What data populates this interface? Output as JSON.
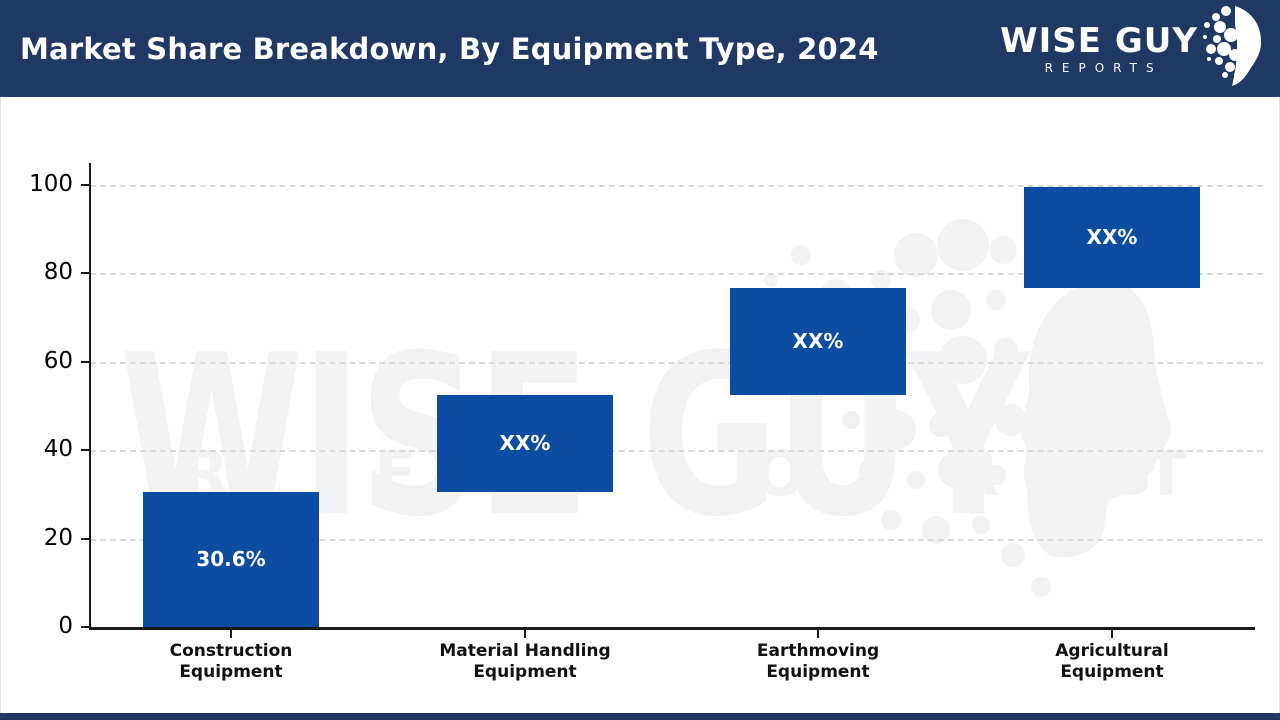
{
  "header": {
    "title": "Market Share Breakdown, By Equipment Type, 2024"
  },
  "logo": {
    "brand": "WISE GUY",
    "sub": "REPORTS",
    "head_icon": "dotted-face-profile"
  },
  "watermark": {
    "brand": "WISE GUY",
    "sub": "R E P O R T S",
    "head_icon": "dotted-face-profile-watermark"
  },
  "colors": {
    "header_bg": "#203864",
    "footer_bg": "#203864",
    "bar": "#0d4da1",
    "bar_label": "#ffffff",
    "gridline": "#d9d9d9",
    "axis": "#1a1a1a",
    "watermark": "#f1f2f3"
  },
  "chart_data": {
    "type": "bar",
    "subtype": "floating-waterfall",
    "title": "Market Share Breakdown, By Equipment Type, 2024",
    "xlabel": "",
    "ylabel": "",
    "ylim": [
      0,
      104
    ],
    "yticks": [
      0,
      20,
      40,
      60,
      80,
      100
    ],
    "grid": "horizontal-dashed",
    "legend": "none",
    "categories": [
      "Construction Equipment",
      "Material Handling Equipment",
      "Earthmoving Equipment",
      "Agricultural Equipment"
    ],
    "segments": [
      {
        "category": "Construction Equipment",
        "start": 0,
        "end": 30.6,
        "label": "30.6%"
      },
      {
        "category": "Material Handling Equipment",
        "start": 30.6,
        "end": 52.5,
        "label": "XX%"
      },
      {
        "category": "Earthmoving Equipment",
        "start": 52.5,
        "end": 76.6,
        "label": "XX%"
      },
      {
        "category": "Agricultural Equipment",
        "start": 76.6,
        "end": 99.5,
        "label": "XX%"
      }
    ]
  }
}
